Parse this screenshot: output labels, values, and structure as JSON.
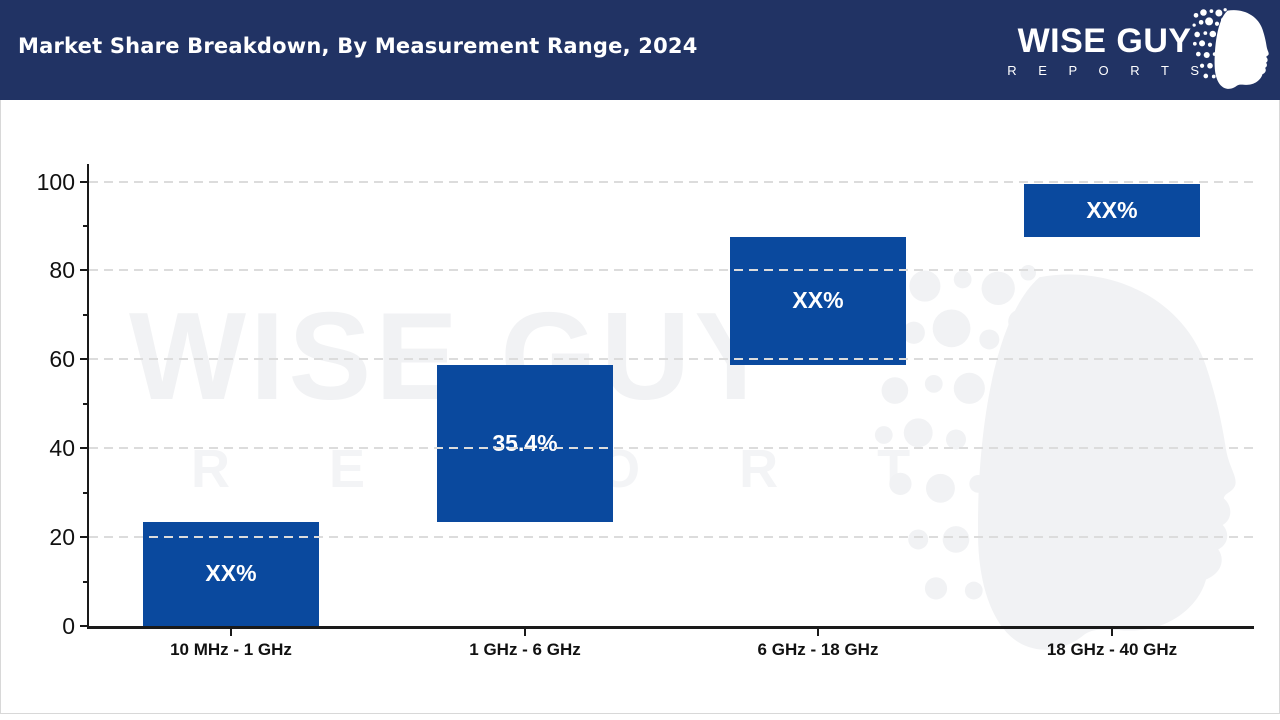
{
  "header": {
    "title": "Market Share Breakdown, By Measurement Range, 2024",
    "bg_color": "#213364",
    "logo": {
      "brand": "WISE GUY",
      "sub": "R E P O R T S"
    }
  },
  "watermark": {
    "line1": "WISE GUY",
    "line2": "R E P O R T S"
  },
  "chart_data": {
    "type": "bar",
    "subtype": "floating-waterfall",
    "title": "Market Share Breakdown, By Measurement Range, 2024",
    "categories": [
      "10 MHz - 1 GHz",
      "1 GHz - 6 GHz",
      "6 GHz - 18 GHz",
      "18 GHz - 40 GHz"
    ],
    "segments": [
      {
        "category": "10 MHz - 1 GHz",
        "start": 0,
        "end": 23.4,
        "label": "XX%"
      },
      {
        "category": "1 GHz - 6 GHz",
        "start": 23.4,
        "end": 58.8,
        "label": "35.4%"
      },
      {
        "category": "6 GHz - 18 GHz",
        "start": 58.8,
        "end": 87.6,
        "label": "XX%"
      },
      {
        "category": "18 GHz - 40 GHz",
        "start": 87.6,
        "end": 99.4,
        "label": "XX%"
      }
    ],
    "yticks": [
      0,
      20,
      40,
      60,
      80,
      100
    ],
    "minor_yticks": [
      10,
      30,
      50,
      70,
      90
    ],
    "ylim": [
      0,
      104
    ],
    "xlabel": "",
    "ylabel": "",
    "legend": "none",
    "grid": "dashed-horizontal",
    "colors": {
      "bar": "#0a499e",
      "bar_label": "#ffffff",
      "grid": "#dcdcdc",
      "axis": "#1a1a1a",
      "tick_label": "#111111"
    }
  }
}
